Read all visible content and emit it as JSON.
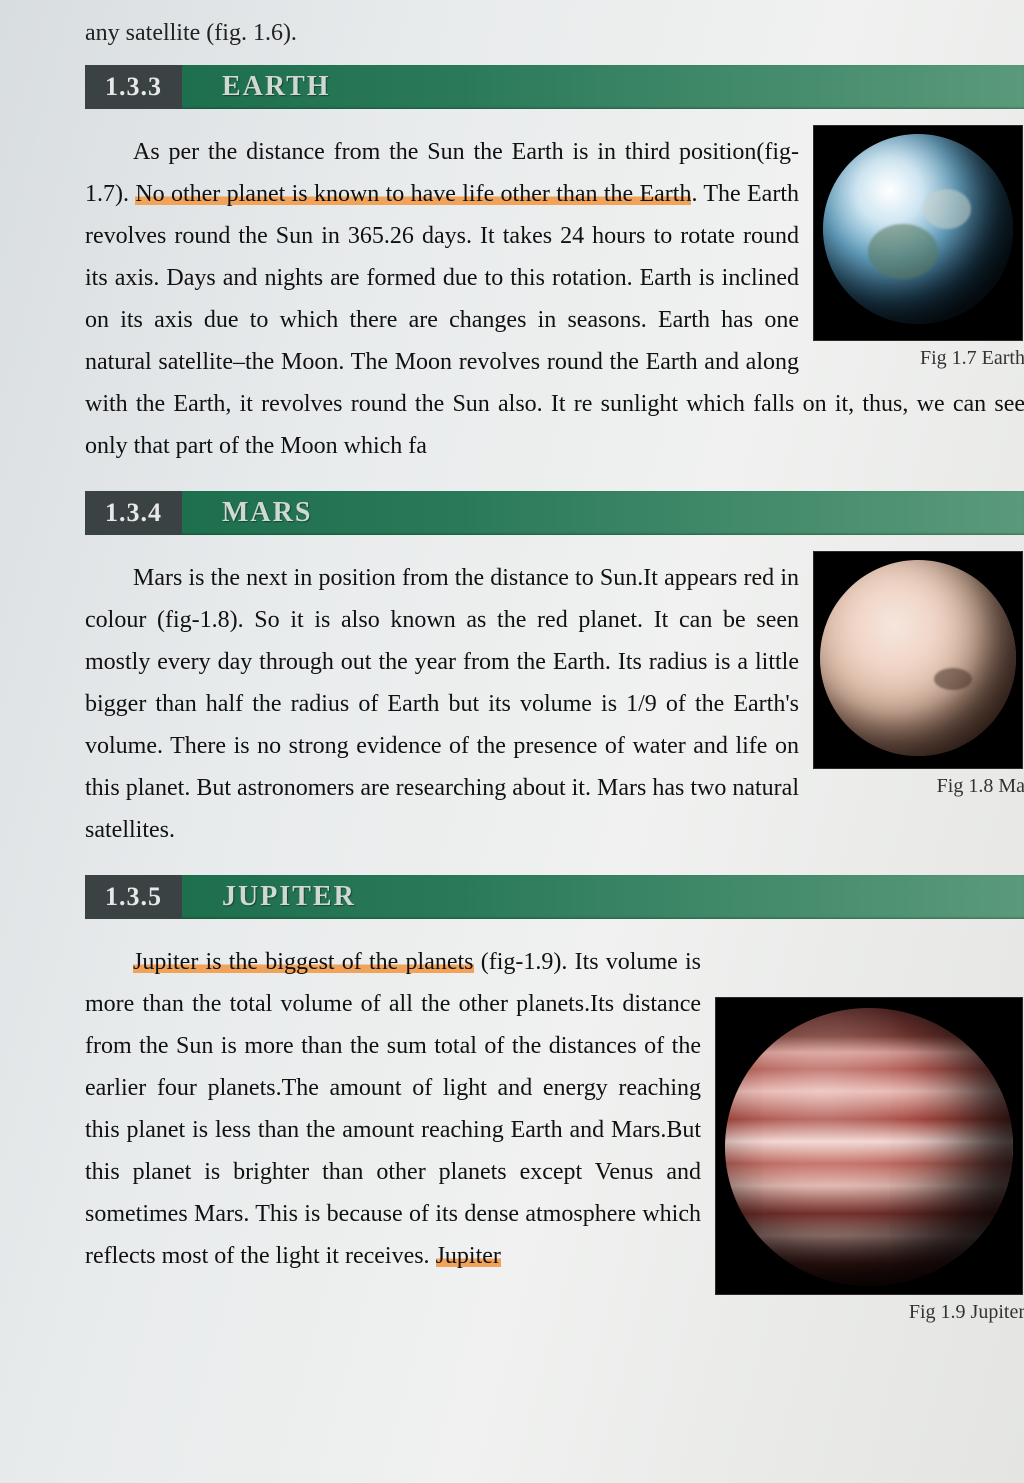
{
  "top_fragment": "any satellite (fig. 1.6).",
  "sections": {
    "earth": {
      "num": "1.3.3",
      "title": "EARTH"
    },
    "mars": {
      "num": "1.3.4",
      "title": "MARS"
    },
    "jupiter": {
      "num": "1.3.5",
      "title": "JUPITER"
    }
  },
  "earth": {
    "p1a": "As per the distance from the Sun the Earth is in third position(fig-1.7). ",
    "hl1": "No other planet is known to have life other than the Earth",
    "p1b": ". The Earth revolves round the Sun in 365.26 days. It takes 24 hours to rotate round its axis. Days and nights are formed due to this rotation. Earth is inclined on its axis due to which there are changes in seasons. Earth has one natural satellite–the Moon. The Moon revolves round the Earth and along with the Earth, it revolves round the Sun also. It re sunlight which falls on it, thus, we can see only that part of the Moon which fa",
    "caption": "Fig 1.7 Earth"
  },
  "mars": {
    "p1": "Mars is the next in position from the distance to Sun.It appears red in colour (fig-1.8). So it is also known as the red planet. It can be seen mostly every day through out the year from the Earth. Its radius is a little bigger than half the radius of Earth but its volume is 1/9 of the Earth's volume. There is no strong evidence of the presence of water and life on this planet. But astronomers are researching about it. Mars has two natural satellites.",
    "caption": "Fig 1.8 Ma"
  },
  "jupiter": {
    "hl1": "Jupiter is the biggest of the planets",
    "p1a": " (fig-1.9). Its volume is more than the total volume of all the other planets.Its distance from the Sun is more than the sum total of the distances of the earlier four planets.The amount of light and energy reaching this planet is less than the amount reaching Earth and Mars.But this planet is brighter than other planets except Venus and sometimes Mars. This is because of its dense atmosphere which reflects most of the light it receives. ",
    "hl2": "Jupiter",
    "caption": "Fig 1.9 Jupiter"
  },
  "colors": {
    "bar_dark": "#3a4244",
    "bar_grad_from": "#1a6b4a",
    "bar_grad_to": "#5a9a7a",
    "highlight": "#f2a35a",
    "page_bg": "#e8ebec",
    "text": "#1a1a1a"
  }
}
